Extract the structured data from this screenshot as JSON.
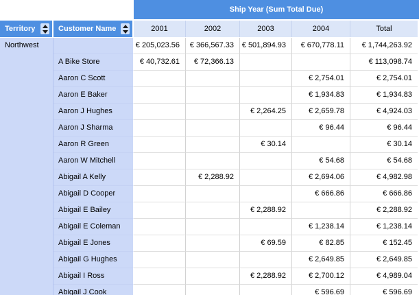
{
  "banner": {
    "title": "Ship Year (Sum Total Due)"
  },
  "columns": {
    "territory": "Territory",
    "customer": "Customer Name",
    "years": [
      "2001",
      "2002",
      "2003",
      "2004",
      "Total"
    ]
  },
  "icons": {
    "territory_sort": "sort-asc-desc-spinner",
    "customer_sort": "sort-asc-desc-spinner"
  },
  "colors": {
    "header_blue": "#4e8fe1",
    "label_cell_bg": "#ccd9f8",
    "year_header_bg": "#dce6f8",
    "grid_line": "#d2d2d2",
    "text": "#000000",
    "header_text": "#ffffff"
  },
  "rows": [
    {
      "territory": "Northwest",
      "customer": "",
      "y2001": "€ 205,023.56",
      "y2002": "€ 366,567.33",
      "y2003": "€ 501,894.93",
      "y2004": "€ 670,778.11",
      "total": "€ 1,744,263.92"
    },
    {
      "territory": "",
      "customer": "A Bike Store",
      "y2001": "€ 40,732.61",
      "y2002": "€ 72,366.13",
      "y2003": "",
      "y2004": "",
      "total": "€ 113,098.74"
    },
    {
      "territory": "",
      "customer": "Aaron C Scott",
      "y2001": "",
      "y2002": "",
      "y2003": "",
      "y2004": "€ 2,754.01",
      "total": "€ 2,754.01"
    },
    {
      "territory": "",
      "customer": "Aaron E Baker",
      "y2001": "",
      "y2002": "",
      "y2003": "",
      "y2004": "€ 1,934.83",
      "total": "€ 1,934.83"
    },
    {
      "territory": "",
      "customer": "Aaron J Hughes",
      "y2001": "",
      "y2002": "",
      "y2003": "€ 2,264.25",
      "y2004": "€ 2,659.78",
      "total": "€ 4,924.03"
    },
    {
      "territory": "",
      "customer": "Aaron J Sharma",
      "y2001": "",
      "y2002": "",
      "y2003": "",
      "y2004": "€ 96.44",
      "total": "€ 96.44"
    },
    {
      "territory": "",
      "customer": "Aaron R Green",
      "y2001": "",
      "y2002": "",
      "y2003": "€ 30.14",
      "y2004": "",
      "total": "€ 30.14"
    },
    {
      "territory": "",
      "customer": "Aaron W Mitchell",
      "y2001": "",
      "y2002": "",
      "y2003": "",
      "y2004": "€ 54.68",
      "total": "€ 54.68"
    },
    {
      "territory": "",
      "customer": "Abigail A Kelly",
      "y2001": "",
      "y2002": "€ 2,288.92",
      "y2003": "",
      "y2004": "€ 2,694.06",
      "total": "€ 4,982.98"
    },
    {
      "territory": "",
      "customer": "Abigail D Cooper",
      "y2001": "",
      "y2002": "",
      "y2003": "",
      "y2004": "€ 666.86",
      "total": "€ 666.86"
    },
    {
      "territory": "",
      "customer": "Abigail E Bailey",
      "y2001": "",
      "y2002": "",
      "y2003": "€ 2,288.92",
      "y2004": "",
      "total": "€ 2,288.92"
    },
    {
      "territory": "",
      "customer": "Abigail E Coleman",
      "y2001": "",
      "y2002": "",
      "y2003": "",
      "y2004": "€ 1,238.14",
      "total": "€ 1,238.14"
    },
    {
      "territory": "",
      "customer": "Abigail E Jones",
      "y2001": "",
      "y2002": "",
      "y2003": "€ 69.59",
      "y2004": "€ 82.85",
      "total": "€ 152.45"
    },
    {
      "territory": "",
      "customer": "Abigail G Hughes",
      "y2001": "",
      "y2002": "",
      "y2003": "",
      "y2004": "€ 2,649.85",
      "total": "€ 2,649.85"
    },
    {
      "territory": "",
      "customer": "Abigail I Ross",
      "y2001": "",
      "y2002": "",
      "y2003": "€ 2,288.92",
      "y2004": "€ 2,700.12",
      "total": "€ 4,989.04"
    },
    {
      "territory": "",
      "customer": "Abigail J Cook",
      "y2001": "",
      "y2002": "",
      "y2003": "",
      "y2004": "€ 596.69",
      "total": "€ 596.69"
    }
  ]
}
